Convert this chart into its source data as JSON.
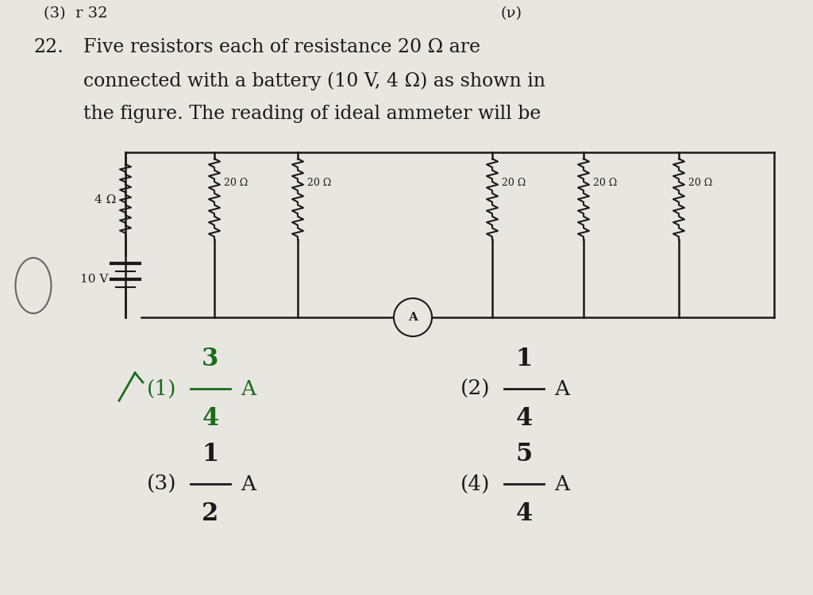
{
  "question_number": "22.",
  "question_text_line1": "Five resistors each of resistance 20 Ω are",
  "question_text_line2": "connected with a battery (10 V, 4 Ω) as shown in",
  "question_text_line3": "the figure. The reading of ideal ammeter will be",
  "background_color": "#e8e6e1",
  "circuit": {
    "battery_label": "10 V",
    "internal_r_label": "4 Ω",
    "resistor_labels": [
      "20 Ω",
      "20 Ω",
      "20 Ω",
      "20 Ω",
      "20 Ω"
    ],
    "ammeter_label": "A"
  },
  "options": [
    {
      "num": "(1)",
      "numerator": "3",
      "denominator": "4",
      "unit": "A",
      "selected": true
    },
    {
      "num": "(2)",
      "numerator": "1",
      "denominator": "4",
      "unit": "A",
      "selected": false
    },
    {
      "num": "(3)",
      "numerator": "1",
      "denominator": "2",
      "unit": "A",
      "selected": false
    },
    {
      "num": "(4)",
      "numerator": "5",
      "denominator": "4",
      "unit": "A",
      "selected": false
    }
  ],
  "text_color": "#1a1a1a",
  "circuit_color": "#1a1a1a",
  "selected_color": "#1a6b1a",
  "top_text_left": "(3)  r 32",
  "top_text_right": "(ν)"
}
